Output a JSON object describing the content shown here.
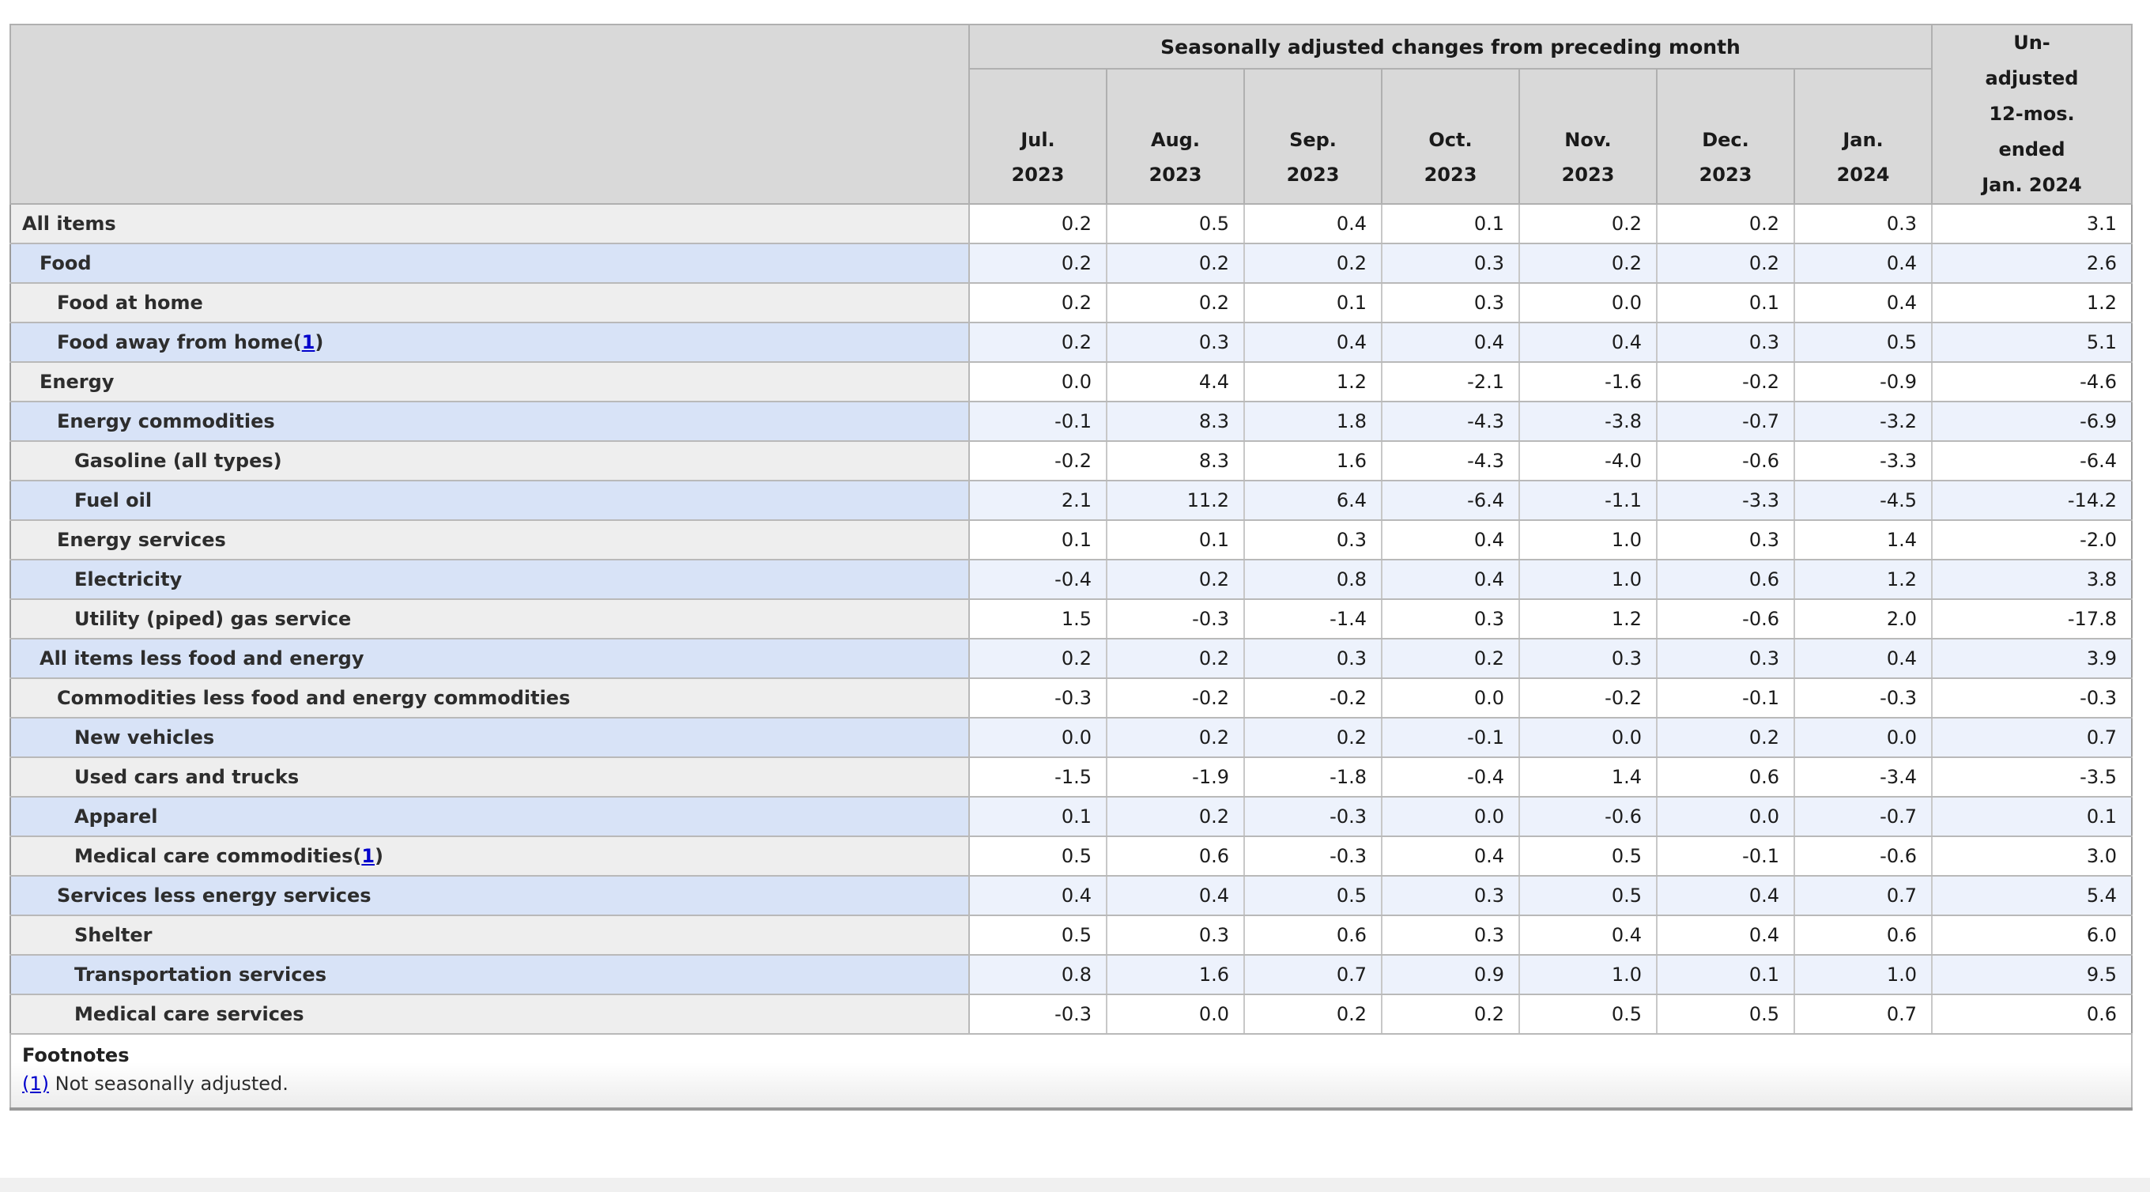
{
  "meta": {
    "paren_open": "(",
    "paren_close": ")"
  },
  "colors": {
    "header_bg": "#d9d9d9",
    "row_label_gray": "#eeeeee",
    "row_label_blue": "#d8e3f7",
    "row_data_blue": "#edf2fc",
    "row_data_white": "#ffffff",
    "border": "#b0b0b0",
    "link": "#0000cc"
  },
  "table": {
    "header": {
      "group_title": "Seasonally adjusted changes from preceding month",
      "unadjusted_title": "Un-\nadjusted\n12-mos.\nended\nJan. 2024",
      "months": [
        "Jul.\n2023",
        "Aug.\n2023",
        "Sep.\n2023",
        "Oct.\n2023",
        "Nov.\n2023",
        "Dec.\n2023",
        "Jan.\n2024"
      ]
    },
    "rows": [
      {
        "label": "All items",
        "indent": 0,
        "values": [
          "0.2",
          "0.5",
          "0.4",
          "0.1",
          "0.2",
          "0.2",
          "0.3"
        ],
        "yoy": "3.1"
      },
      {
        "label": "Food",
        "indent": 1,
        "values": [
          "0.2",
          "0.2",
          "0.2",
          "0.3",
          "0.2",
          "0.2",
          "0.4"
        ],
        "yoy": "2.6"
      },
      {
        "label": "Food at home",
        "indent": 2,
        "values": [
          "0.2",
          "0.2",
          "0.1",
          "0.3",
          "0.0",
          "0.1",
          "0.4"
        ],
        "yoy": "1.2"
      },
      {
        "label": "Food away from home",
        "indent": 2,
        "footnote_ref": "1",
        "values": [
          "0.2",
          "0.3",
          "0.4",
          "0.4",
          "0.4",
          "0.3",
          "0.5"
        ],
        "yoy": "5.1"
      },
      {
        "label": "Energy",
        "indent": 1,
        "values": [
          "0.0",
          "4.4",
          "1.2",
          "-2.1",
          "-1.6",
          "-0.2",
          "-0.9"
        ],
        "yoy": "-4.6"
      },
      {
        "label": "Energy commodities",
        "indent": 2,
        "values": [
          "-0.1",
          "8.3",
          "1.8",
          "-4.3",
          "-3.8",
          "-0.7",
          "-3.2"
        ],
        "yoy": "-6.9"
      },
      {
        "label": "Gasoline (all types)",
        "indent": 3,
        "values": [
          "-0.2",
          "8.3",
          "1.6",
          "-4.3",
          "-4.0",
          "-0.6",
          "-3.3"
        ],
        "yoy": "-6.4"
      },
      {
        "label": "Fuel oil",
        "indent": 3,
        "values": [
          "2.1",
          "11.2",
          "6.4",
          "-6.4",
          "-1.1",
          "-3.3",
          "-4.5"
        ],
        "yoy": "-14.2"
      },
      {
        "label": "Energy services",
        "indent": 2,
        "values": [
          "0.1",
          "0.1",
          "0.3",
          "0.4",
          "1.0",
          "0.3",
          "1.4"
        ],
        "yoy": "-2.0"
      },
      {
        "label": "Electricity",
        "indent": 3,
        "values": [
          "-0.4",
          "0.2",
          "0.8",
          "0.4",
          "1.0",
          "0.6",
          "1.2"
        ],
        "yoy": "3.8"
      },
      {
        "label": "Utility (piped) gas service",
        "indent": 3,
        "values": [
          "1.5",
          "-0.3",
          "-1.4",
          "0.3",
          "1.2",
          "-0.6",
          "2.0"
        ],
        "yoy": "-17.8"
      },
      {
        "label": "All items less food and energy",
        "indent": 1,
        "values": [
          "0.2",
          "0.2",
          "0.3",
          "0.2",
          "0.3",
          "0.3",
          "0.4"
        ],
        "yoy": "3.9"
      },
      {
        "label": "Commodities less food and energy commodities",
        "indent": 2,
        "values": [
          "-0.3",
          "-0.2",
          "-0.2",
          "0.0",
          "-0.2",
          "-0.1",
          "-0.3"
        ],
        "yoy": "-0.3"
      },
      {
        "label": "New vehicles",
        "indent": 3,
        "values": [
          "0.0",
          "0.2",
          "0.2",
          "-0.1",
          "0.0",
          "0.2",
          "0.0"
        ],
        "yoy": "0.7"
      },
      {
        "label": "Used cars and trucks",
        "indent": 3,
        "values": [
          "-1.5",
          "-1.9",
          "-1.8",
          "-0.4",
          "1.4",
          "0.6",
          "-3.4"
        ],
        "yoy": "-3.5"
      },
      {
        "label": "Apparel",
        "indent": 3,
        "values": [
          "0.1",
          "0.2",
          "-0.3",
          "0.0",
          "-0.6",
          "0.0",
          "-0.7"
        ],
        "yoy": "0.1"
      },
      {
        "label": "Medical care commodities",
        "indent": 3,
        "footnote_ref": "1",
        "values": [
          "0.5",
          "0.6",
          "-0.3",
          "0.4",
          "0.5",
          "-0.1",
          "-0.6"
        ],
        "yoy": "3.0"
      },
      {
        "label": "Services less energy services",
        "indent": 2,
        "values": [
          "0.4",
          "0.4",
          "0.5",
          "0.3",
          "0.5",
          "0.4",
          "0.7"
        ],
        "yoy": "5.4"
      },
      {
        "label": "Shelter",
        "indent": 3,
        "values": [
          "0.5",
          "0.3",
          "0.6",
          "0.3",
          "0.4",
          "0.4",
          "0.6"
        ],
        "yoy": "6.0"
      },
      {
        "label": "Transportation services",
        "indent": 3,
        "values": [
          "0.8",
          "1.6",
          "0.7",
          "0.9",
          "1.0",
          "0.1",
          "1.0"
        ],
        "yoy": "9.5"
      },
      {
        "label": "Medical care services",
        "indent": 3,
        "values": [
          "-0.3",
          "0.0",
          "0.2",
          "0.2",
          "0.5",
          "0.5",
          "0.7"
        ],
        "yoy": "0.6"
      }
    ],
    "footnotes": {
      "heading": "Footnotes",
      "items": [
        {
          "link": "(1)",
          "text": " Not seasonally adjusted."
        }
      ]
    }
  }
}
